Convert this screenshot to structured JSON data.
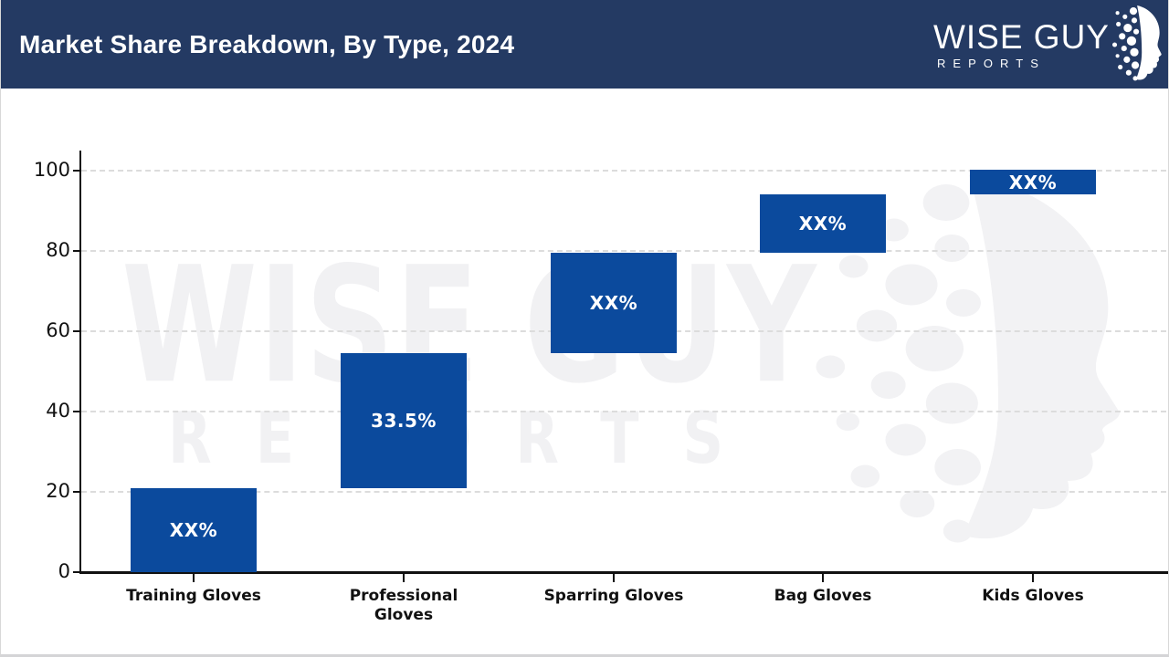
{
  "header": {
    "title": "Market Share Breakdown, By Type, 2024",
    "logo_line1": "WISE GUY",
    "logo_line2": "REPORTS"
  },
  "watermark": {
    "line1": "WISE GUY",
    "line2": "REPORTS"
  },
  "chart_data": {
    "type": "bar",
    "subtype": "floating-waterfall",
    "title": "Market Share Breakdown, By Type, 2024",
    "categories": [
      "Training Gloves",
      "Professional Gloves",
      "Sparring Gloves",
      "Bag Gloves",
      "Kids Gloves"
    ],
    "bars": [
      {
        "category": "Training Gloves",
        "start": 0,
        "end": 21,
        "label": "XX%"
      },
      {
        "category": "Professional Gloves",
        "start": 21,
        "end": 54.5,
        "label": "33.5%"
      },
      {
        "category": "Sparring Gloves",
        "start": 54.5,
        "end": 79.5,
        "label": "XX%"
      },
      {
        "category": "Bag Gloves",
        "start": 79.5,
        "end": 94,
        "label": "XX%"
      },
      {
        "category": "Kids Gloves",
        "start": 94,
        "end": 100.3,
        "label": "XX%"
      }
    ],
    "yticks": [
      0,
      20,
      40,
      60,
      80,
      100
    ],
    "ylim": [
      0,
      104
    ],
    "xlabel": "",
    "ylabel": "",
    "grid": "horizontal-dashed",
    "legend": "none"
  },
  "colors": {
    "header_bg": "#243a63",
    "bar": "#0b4a9d",
    "grid": "#dcdcdc",
    "axis": "#111111",
    "watermark": "#f1f1f3",
    "logo_text": "#ffffff"
  }
}
